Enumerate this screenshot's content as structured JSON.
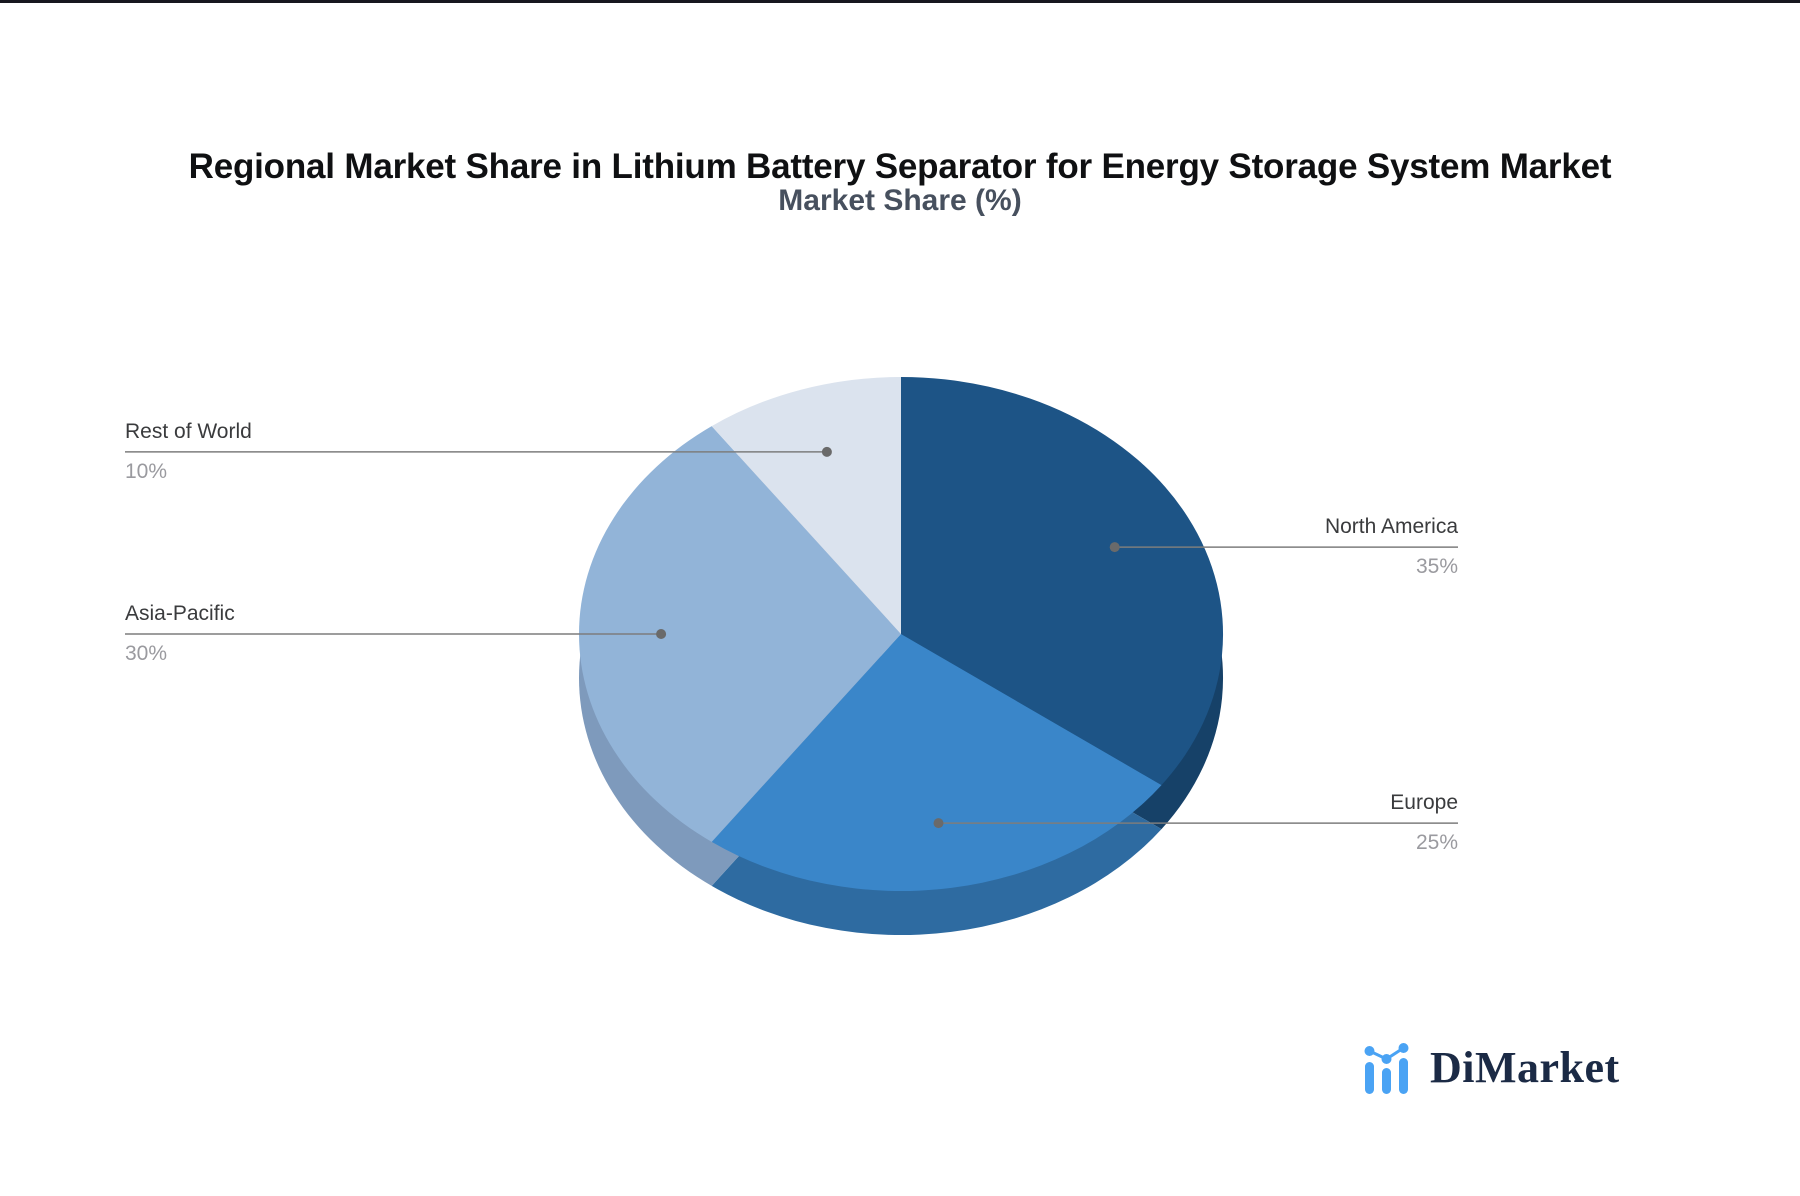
{
  "page": {
    "top_border_color": "#17171f",
    "background": "#ffffff"
  },
  "chart_data": {
    "type": "pie",
    "style": "3d-pie-with-depth-rim",
    "title": "Regional Market Share in Lithium Battery Separator for Energy Storage System Market",
    "subtitle": "Market Share (%)",
    "unit": "%",
    "categories": [
      "North America",
      "Europe",
      "Asia-Pacific",
      "Rest of World"
    ],
    "values": [
      35,
      25,
      30,
      10
    ],
    "percent_labels": [
      "35%",
      "25%",
      "30%",
      "10%"
    ],
    "colors": [
      "#1d5486",
      "#3a86c9",
      "#92b4d8",
      "#dbe3ee"
    ],
    "side_colors": [
      "#164168",
      "#2e6ba1",
      "#7e9abc",
      "#b6c2d4"
    ],
    "start_angle_deg_from_12_oclock": 0,
    "direction": "clockwise",
    "legend_position": "none",
    "labeling": "horizontal leader lines with end dots; category name above line, percent value below line",
    "leader_line_color": "#7d7d7d",
    "leader_dot_color": "#6a6a6a"
  },
  "branding": {
    "logo_text": "DiMarket",
    "logo_icon": "bar-line-chart-icon",
    "logo_text_color": "#1b2a45",
    "logo_accent_color": "#4aa3f4"
  }
}
